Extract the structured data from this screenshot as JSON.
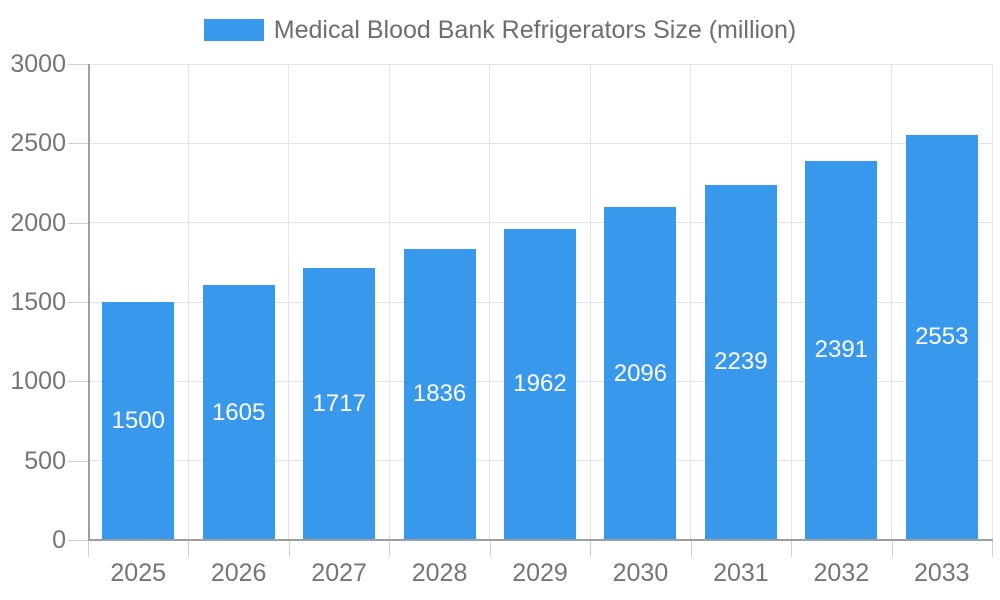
{
  "legend": {
    "label": "Medical Blood Bank Refrigerators Size (million)"
  },
  "colors": {
    "bar": "#3898EC",
    "bar_label_text": "#ffffff",
    "grid": "#e4e4e4",
    "axis": "#9e9e9e",
    "tick": "#cfcfcf",
    "axis_text": "#757575",
    "legend_text": "#6e6e6e",
    "background": "#ffffff"
  },
  "chart_data": {
    "type": "bar",
    "title": "Medical Blood Bank Refrigerators Size (million)",
    "categories": [
      "2025",
      "2026",
      "2027",
      "2028",
      "2029",
      "2030",
      "2031",
      "2032",
      "2033"
    ],
    "values": [
      1500,
      1605,
      1717,
      1836,
      1962,
      2096,
      2239,
      2391,
      2553
    ],
    "xlabel": "",
    "ylabel": "",
    "ylim": [
      0,
      3000
    ],
    "yticks": [
      0,
      500,
      1000,
      1500,
      2000,
      2500,
      3000
    ],
    "grid": true,
    "legend_position": "top",
    "value_label_position": "inside-center"
  }
}
